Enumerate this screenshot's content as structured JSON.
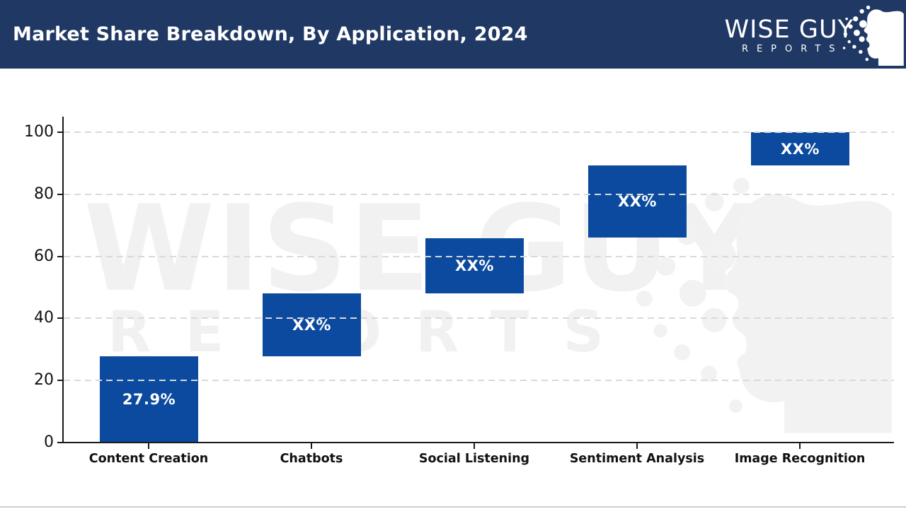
{
  "header": {
    "title": "Market Share Breakdown, By Application, 2024",
    "bg_color": "#203864",
    "logo": {
      "line1": "WISE GUY",
      "line2": "REPORTS"
    }
  },
  "watermark": {
    "line1": "WISE GUY",
    "line2": "REPORTS"
  },
  "chart_data": {
    "type": "bar",
    "subtype": "floating-waterfall",
    "title": "Market Share Breakdown, By Application, 2024",
    "xlabel": "",
    "ylabel": "",
    "categories": [
      "Content Creation",
      "Chatbots",
      "Social Listening",
      "Sentiment Analysis",
      "Image Recognition"
    ],
    "series": [
      {
        "name": "Market Share (%)",
        "segments": [
          {
            "category": "Content Creation",
            "start": 0,
            "end": 27.9,
            "label": "27.9%"
          },
          {
            "category": "Chatbots",
            "start": 27.9,
            "end": 48.1,
            "label": "XX%"
          },
          {
            "category": "Social Listening",
            "start": 48.1,
            "end": 65.9,
            "label": "XX%"
          },
          {
            "category": "Sentiment Analysis",
            "start": 65.9,
            "end": 89.2,
            "label": "XX%"
          },
          {
            "category": "Image Recognition",
            "start": 89.2,
            "end": 100,
            "label": "XX%"
          }
        ]
      }
    ],
    "ylim": [
      0,
      100
    ],
    "yticks": [
      0,
      20,
      40,
      60,
      80,
      100
    ],
    "grid": "horizontal dashed, drawn above bars",
    "legend": "none",
    "bar_color": "#0b4a9e",
    "bar_label_color": "#ffffff",
    "gridline_color": "#d9d9d9",
    "axis_color": "#1a1a1a"
  }
}
